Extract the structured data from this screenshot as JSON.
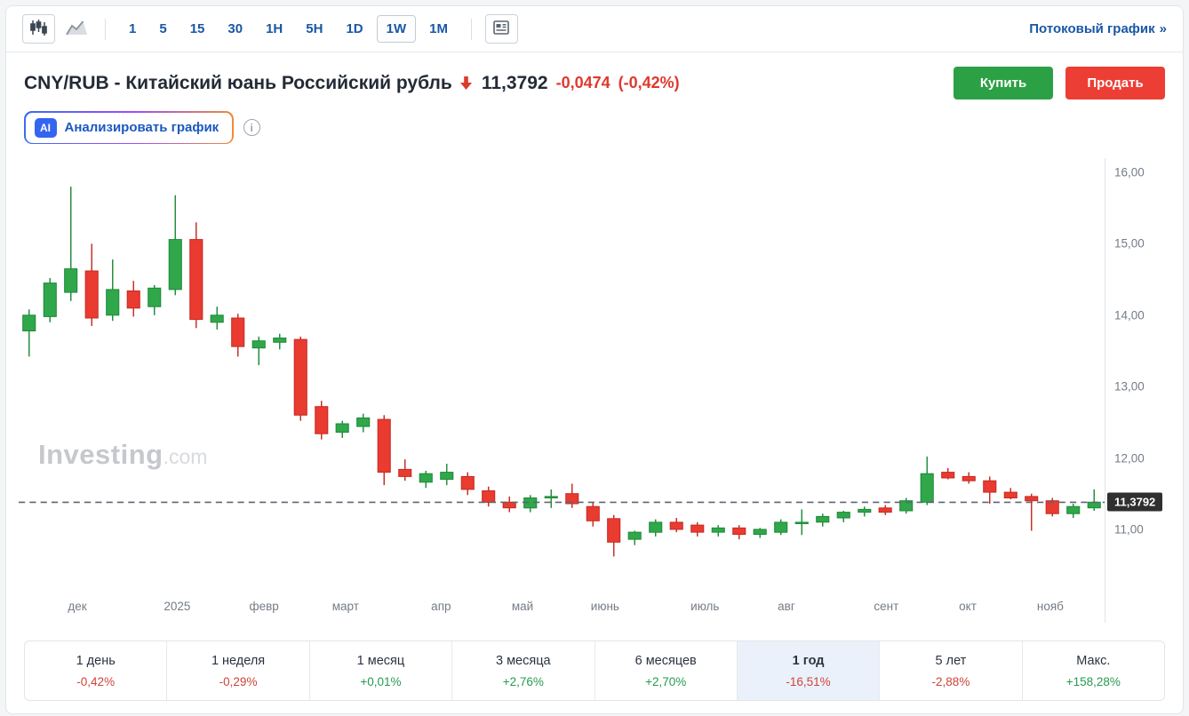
{
  "toolbar": {
    "timeframes": [
      "1",
      "5",
      "15",
      "30",
      "1H",
      "5H",
      "1D",
      "1W",
      "1M"
    ],
    "selected_timeframe": "1W",
    "streaming_link": "Потоковый график",
    "streaming_chevron": "»"
  },
  "header": {
    "title": "CNY/RUB - Китайский юань Российский рубль",
    "price": "11,3792",
    "change": "-0,0474",
    "change_pct": "(-0,42%)",
    "direction": "down",
    "buy_label": "Купить",
    "sell_label": "Продать"
  },
  "ai": {
    "badge": "AI",
    "label": "Анализировать график"
  },
  "chart": {
    "watermark_main": "Investing",
    "watermark_suffix": ".com",
    "current_price_label": "11,3792"
  },
  "chart_data": {
    "type": "candlestick",
    "symbol": "CNY/RUB",
    "timeframe": "1W",
    "title": "CNY/RUB weekly candlestick chart, Nov 2024 - Nov 2025",
    "y_range": [
      10.14,
      16.2
    ],
    "y_ticks": [
      {
        "label": "16,00",
        "value": 16.0
      },
      {
        "label": "15,00",
        "value": 15.0
      },
      {
        "label": "14,00",
        "value": 14.0
      },
      {
        "label": "13,00",
        "value": 13.0
      },
      {
        "label": "12,00",
        "value": 12.0
      },
      {
        "label": "11,00",
        "value": 11.0
      }
    ],
    "x_labels": [
      {
        "label": "дек",
        "pos": 0.054
      },
      {
        "label": "2025",
        "pos": 0.146
      },
      {
        "label": "февр",
        "pos": 0.226
      },
      {
        "label": "март",
        "pos": 0.301
      },
      {
        "label": "апр",
        "pos": 0.389
      },
      {
        "label": "май",
        "pos": 0.464
      },
      {
        "label": "июнь",
        "pos": 0.54
      },
      {
        "label": "июль",
        "pos": 0.632
      },
      {
        "label": "авг",
        "pos": 0.707
      },
      {
        "label": "сент",
        "pos": 0.799
      },
      {
        "label": "окт",
        "pos": 0.874
      },
      {
        "label": "нояб",
        "pos": 0.95
      }
    ],
    "candles": [
      [
        13.78,
        14.08,
        13.42,
        14.0
      ],
      [
        13.98,
        14.52,
        13.9,
        14.45
      ],
      [
        14.32,
        15.8,
        14.2,
        14.65
      ],
      [
        14.62,
        15.0,
        13.85,
        13.96
      ],
      [
        14.0,
        14.78,
        13.92,
        14.36
      ],
      [
        14.34,
        14.48,
        13.98,
        14.1
      ],
      [
        14.12,
        14.42,
        14.0,
        14.38
      ],
      [
        14.36,
        15.68,
        14.28,
        15.06
      ],
      [
        15.06,
        15.3,
        13.82,
        13.94
      ],
      [
        13.9,
        14.12,
        13.8,
        14.0
      ],
      [
        13.96,
        14.02,
        13.42,
        13.56
      ],
      [
        13.54,
        13.7,
        13.3,
        13.64
      ],
      [
        13.62,
        13.74,
        13.52,
        13.68
      ],
      [
        13.66,
        13.7,
        12.52,
        12.6
      ],
      [
        12.72,
        12.8,
        12.26,
        12.34
      ],
      [
        12.36,
        12.52,
        12.28,
        12.48
      ],
      [
        12.44,
        12.62,
        12.36,
        12.56
      ],
      [
        12.54,
        12.6,
        11.62,
        11.8
      ],
      [
        11.84,
        11.98,
        11.68,
        11.74
      ],
      [
        11.66,
        11.82,
        11.58,
        11.78
      ],
      [
        11.7,
        11.92,
        11.62,
        11.8
      ],
      [
        11.74,
        11.8,
        11.48,
        11.56
      ],
      [
        11.54,
        11.6,
        11.32,
        11.38
      ],
      [
        11.38,
        11.46,
        11.24,
        11.3
      ],
      [
        11.3,
        11.48,
        11.24,
        11.44
      ],
      [
        11.44,
        11.56,
        11.3,
        11.46
      ],
      [
        11.5,
        11.64,
        11.3,
        11.36
      ],
      [
        11.32,
        11.38,
        11.04,
        11.12
      ],
      [
        11.15,
        11.2,
        10.62,
        10.82
      ],
      [
        10.86,
        10.98,
        10.78,
        10.96
      ],
      [
        10.96,
        11.14,
        10.9,
        11.1
      ],
      [
        11.1,
        11.16,
        10.96,
        11.0
      ],
      [
        11.06,
        11.1,
        10.9,
        10.96
      ],
      [
        10.96,
        11.06,
        10.9,
        11.02
      ],
      [
        11.02,
        11.06,
        10.86,
        10.93
      ],
      [
        10.93,
        11.02,
        10.88,
        11.0
      ],
      [
        10.96,
        11.14,
        10.92,
        11.1
      ],
      [
        11.08,
        11.28,
        10.92,
        11.1
      ],
      [
        11.1,
        11.22,
        11.04,
        11.18
      ],
      [
        11.16,
        11.26,
        11.1,
        11.24
      ],
      [
        11.24,
        11.32,
        11.18,
        11.28
      ],
      [
        11.3,
        11.34,
        11.2,
        11.24
      ],
      [
        11.26,
        11.44,
        11.22,
        11.4
      ],
      [
        11.38,
        12.02,
        11.34,
        11.78
      ],
      [
        11.8,
        11.86,
        11.7,
        11.72
      ],
      [
        11.74,
        11.8,
        11.64,
        11.68
      ],
      [
        11.68,
        11.74,
        11.36,
        11.52
      ],
      [
        11.52,
        11.58,
        11.42,
        11.44
      ],
      [
        11.46,
        11.5,
        10.98,
        11.4
      ],
      [
        11.4,
        11.44,
        11.18,
        11.22
      ],
      [
        11.22,
        11.36,
        11.16,
        11.32
      ],
      [
        11.3,
        11.56,
        11.26,
        11.38
      ]
    ],
    "current_price": 11.3792,
    "up_fill": "#30a74a",
    "up_stroke": "#1d8a38",
    "down_fill": "#ea3b30",
    "down_stroke": "#c52a22",
    "dashed_line_color": "#5f6670",
    "grid": false,
    "legend": false
  },
  "performance": {
    "periods": [
      {
        "label": "1 день",
        "value": "-0,42%",
        "direction": "down",
        "selected": false
      },
      {
        "label": "1 неделя",
        "value": "-0,29%",
        "direction": "down",
        "selected": false
      },
      {
        "label": "1 месяц",
        "value": "+0,01%",
        "direction": "up",
        "selected": false
      },
      {
        "label": "3 месяца",
        "value": "+2,76%",
        "direction": "up",
        "selected": false
      },
      {
        "label": "6 месяцев",
        "value": "+2,70%",
        "direction": "up",
        "selected": false
      },
      {
        "label": "1 год",
        "value": "-16,51%",
        "direction": "down",
        "selected": true
      },
      {
        "label": "5 лет",
        "value": "-2,88%",
        "direction": "down",
        "selected": false
      },
      {
        "label": "Макс.",
        "value": "+158,28%",
        "direction": "up",
        "selected": false
      }
    ]
  }
}
